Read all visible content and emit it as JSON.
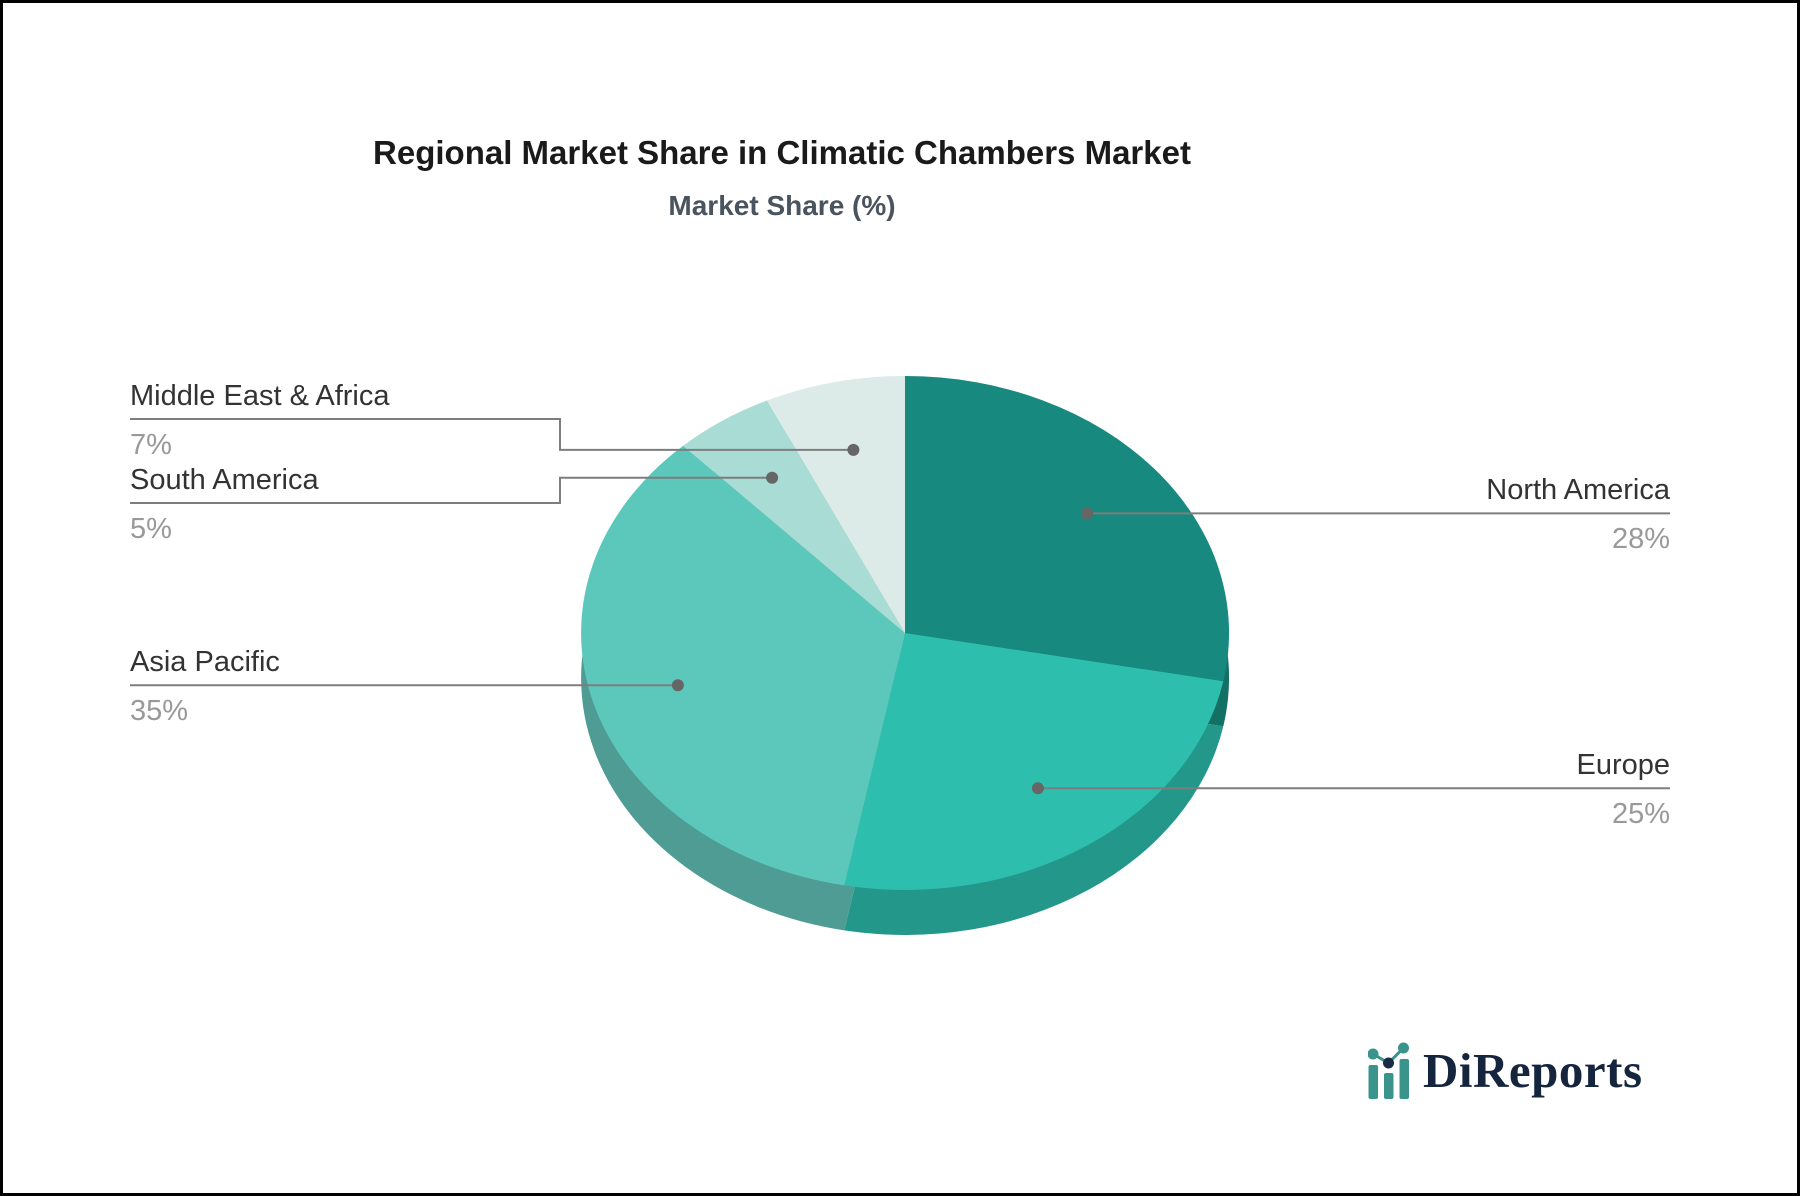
{
  "title": "Regional Market Share in Climatic Chambers Market",
  "subtitle": "Market Share (%)",
  "watermark": {
    "text": "DiReports",
    "icon": "bar-chart-logo-icon",
    "text_color": "#16253E",
    "icon_bar_color": "#3A948B",
    "icon_dot_color": "#1A2B45"
  },
  "chart_data": {
    "type": "pie",
    "title": "Regional Market Share in Climatic Chambers Market",
    "subtitle": "Market Share (%)",
    "unit": "%",
    "style": "3d",
    "start_angle_deg": 0,
    "direction": "clockwise",
    "legend": "none",
    "background": "#ffffff",
    "categories": [
      "North America",
      "Europe",
      "Asia Pacific",
      "South America",
      "Middle East & Africa"
    ],
    "values": [
      28,
      25,
      35,
      5,
      7
    ],
    "slices": [
      {
        "label": "North America",
        "value": 28,
        "display": "28%",
        "color": "#17897E",
        "rim_color": "#137065",
        "callout_side": "right",
        "callout_shape": "straight"
      },
      {
        "label": "Europe",
        "value": 25,
        "display": "25%",
        "color": "#2EBEAD",
        "rim_color": "#239789",
        "callout_side": "right",
        "callout_shape": "straight"
      },
      {
        "label": "Asia Pacific",
        "value": 35,
        "display": "35%",
        "color": "#5BC8BB",
        "rim_color": "#4E9C93",
        "callout_side": "left",
        "callout_shape": "straight"
      },
      {
        "label": "South America",
        "value": 5,
        "display": "5%",
        "color": "#A9DCD4",
        "rim_color": "#84B1AA",
        "callout_side": "left",
        "callout_shape": "step"
      },
      {
        "label": "Middle East & Africa",
        "value": 7,
        "display": "7%",
        "color": "#DCEBE8",
        "rim_color": "#B7C9C5",
        "callout_side": "left",
        "callout_shape": "step"
      }
    ],
    "label_text_color": "#333333",
    "value_text_color": "#999999",
    "leader_line_color": "#7d7d7d",
    "leader_dot_color": "#666666"
  }
}
